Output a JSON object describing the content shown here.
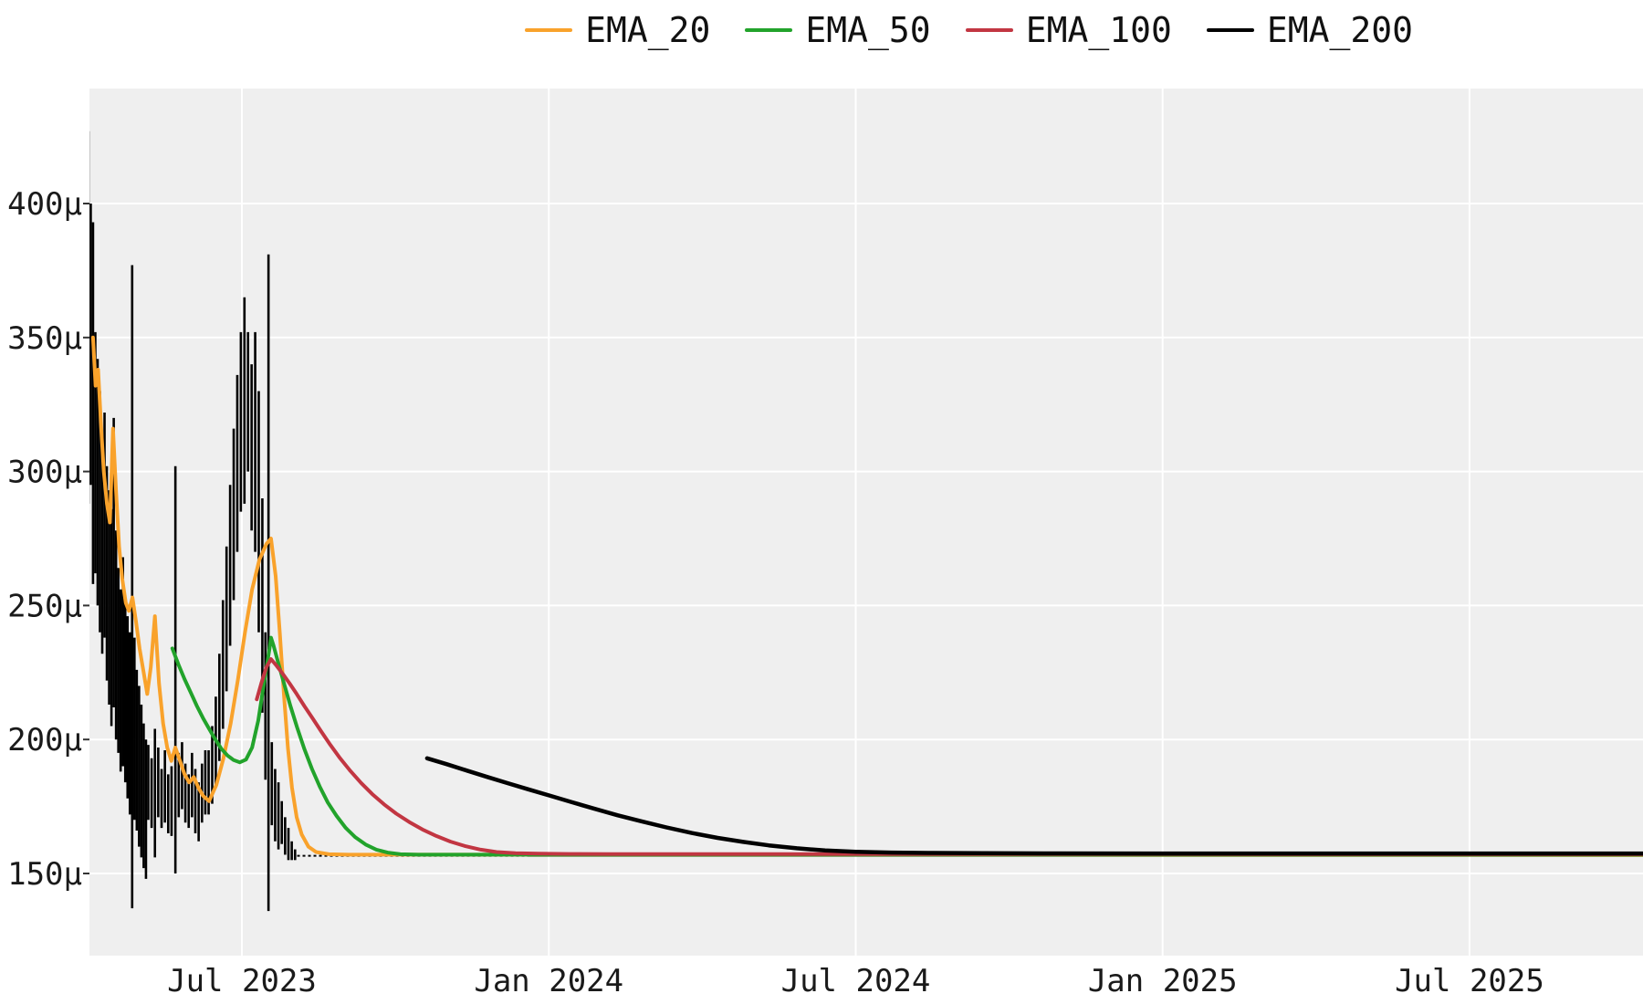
{
  "chart_data": {
    "type": "line",
    "title": "",
    "x_unit": "months since 2023-04-01",
    "y_unit": "µ (micro, price)",
    "x_range_months": [
      0,
      30.4
    ],
    "y_range_mu": [
      119,
      443
    ],
    "grid": true,
    "plot_bg_color": "#efefef",
    "grid_color": "#ffffff",
    "legend_position": "top-right-outside",
    "x_axis": {
      "ticks": [
        {
          "label": "Jul 2023",
          "month": 3
        },
        {
          "label": "Jan 2024",
          "month": 9
        },
        {
          "label": "Jul 2024",
          "month": 15
        },
        {
          "label": "Jan 2025",
          "month": 21
        },
        {
          "label": "Jul 2025",
          "month": 27
        }
      ]
    },
    "y_axis": {
      "ticks": [
        {
          "label": "400µ",
          "value": 400
        },
        {
          "label": "350µ",
          "value": 350
        },
        {
          "label": "300µ",
          "value": 300
        },
        {
          "label": "250µ",
          "value": 250
        },
        {
          "label": "200µ",
          "value": 200
        },
        {
          "label": "150µ",
          "value": 150
        }
      ]
    },
    "legend": {
      "items": [
        {
          "label": "EMA_20",
          "color": "#f9a22b"
        },
        {
          "label": "EMA_50",
          "color": "#22a32b"
        },
        {
          "label": "EMA_100",
          "color": "#c23642"
        },
        {
          "label": "EMA_200",
          "color": "#000000"
        }
      ]
    },
    "series": [
      {
        "name": "EMA_20",
        "color": "#f9a22b",
        "width": 4,
        "points": [
          [
            0.09,
            350
          ],
          [
            0.14,
            332
          ],
          [
            0.19,
            338
          ],
          [
            0.25,
            316
          ],
          [
            0.3,
            300
          ],
          [
            0.36,
            288
          ],
          [
            0.42,
            281
          ],
          [
            0.48,
            316
          ],
          [
            0.54,
            293
          ],
          [
            0.6,
            272
          ],
          [
            0.66,
            260
          ],
          [
            0.73,
            251
          ],
          [
            0.79,
            248
          ],
          [
            0.86,
            253
          ],
          [
            0.93,
            244
          ],
          [
            1.0,
            234
          ],
          [
            1.08,
            225
          ],
          [
            1.15,
            217
          ],
          [
            1.22,
            227
          ],
          [
            1.3,
            246
          ],
          [
            1.38,
            221
          ],
          [
            1.46,
            206
          ],
          [
            1.54,
            197
          ],
          [
            1.62,
            192
          ],
          [
            1.7,
            197
          ],
          [
            1.79,
            192
          ],
          [
            1.88,
            187
          ],
          [
            1.97,
            184
          ],
          [
            2.06,
            186
          ],
          [
            2.15,
            182
          ],
          [
            2.24,
            179
          ],
          [
            2.36,
            177
          ],
          [
            2.5,
            183
          ],
          [
            2.64,
            193
          ],
          [
            2.78,
            206
          ],
          [
            2.92,
            222
          ],
          [
            3.06,
            240
          ],
          [
            3.2,
            256
          ],
          [
            3.34,
            267
          ],
          [
            3.48,
            273
          ],
          [
            3.57,
            275
          ],
          [
            3.66,
            261
          ],
          [
            3.74,
            240
          ],
          [
            3.82,
            217
          ],
          [
            3.9,
            197
          ],
          [
            3.98,
            182
          ],
          [
            4.07,
            171
          ],
          [
            4.17,
            164.5
          ],
          [
            4.3,
            160
          ],
          [
            4.45,
            158
          ],
          [
            4.7,
            157.2
          ],
          [
            5.1,
            157
          ],
          [
            30.4,
            156.9
          ]
        ]
      },
      {
        "name": "EMA_50",
        "color": "#22a32b",
        "width": 4,
        "points": [
          [
            1.64,
            234
          ],
          [
            1.76,
            228
          ],
          [
            1.88,
            222.5
          ],
          [
            2.0,
            217.5
          ],
          [
            2.12,
            212.5
          ],
          [
            2.24,
            208
          ],
          [
            2.36,
            204
          ],
          [
            2.48,
            200
          ],
          [
            2.6,
            196.5
          ],
          [
            2.72,
            194
          ],
          [
            2.84,
            192.3
          ],
          [
            2.96,
            191.5
          ],
          [
            3.08,
            192.5
          ],
          [
            3.2,
            197
          ],
          [
            3.32,
            207
          ],
          [
            3.44,
            222
          ],
          [
            3.54,
            234
          ],
          [
            3.57,
            238
          ],
          [
            3.62,
            235
          ],
          [
            3.72,
            228
          ],
          [
            3.83,
            220.5
          ],
          [
            3.95,
            212.5
          ],
          [
            4.08,
            204.5
          ],
          [
            4.22,
            196.5
          ],
          [
            4.37,
            189
          ],
          [
            4.52,
            182.5
          ],
          [
            4.68,
            176.5
          ],
          [
            4.85,
            171.5
          ],
          [
            5.03,
            167
          ],
          [
            5.22,
            163.5
          ],
          [
            5.42,
            160.8
          ],
          [
            5.63,
            158.9
          ],
          [
            5.85,
            157.8
          ],
          [
            6.1,
            157.2
          ],
          [
            6.45,
            157
          ],
          [
            30.4,
            157
          ]
        ]
      },
      {
        "name": "EMA_100",
        "color": "#c23642",
        "width": 4,
        "points": [
          [
            3.29,
            215
          ],
          [
            3.38,
            221
          ],
          [
            3.48,
            227
          ],
          [
            3.57,
            230
          ],
          [
            3.68,
            227.5
          ],
          [
            3.8,
            224.5
          ],
          [
            3.93,
            221
          ],
          [
            4.07,
            217
          ],
          [
            4.22,
            212.5
          ],
          [
            4.38,
            208
          ],
          [
            4.55,
            203
          ],
          [
            4.73,
            198
          ],
          [
            4.92,
            193
          ],
          [
            5.12,
            188.3
          ],
          [
            5.33,
            183.8
          ],
          [
            5.55,
            179.6
          ],
          [
            5.78,
            175.8
          ],
          [
            6.02,
            172.3
          ],
          [
            6.27,
            169.2
          ],
          [
            6.53,
            166.4
          ],
          [
            6.8,
            164
          ],
          [
            7.08,
            161.9
          ],
          [
            7.37,
            160.2
          ],
          [
            7.67,
            158.9
          ],
          [
            7.98,
            158
          ],
          [
            8.35,
            157.6
          ],
          [
            8.8,
            157.4
          ],
          [
            9.4,
            157.3
          ],
          [
            10.2,
            157.25
          ],
          [
            30.4,
            157.2
          ]
        ]
      },
      {
        "name": "EMA_200",
        "color": "#000000",
        "width": 4.5,
        "points": [
          [
            6.62,
            193
          ],
          [
            7.0,
            190.8
          ],
          [
            7.4,
            188.4
          ],
          [
            7.8,
            186
          ],
          [
            8.2,
            183.7
          ],
          [
            8.6,
            181.4
          ],
          [
            9.03,
            179
          ],
          [
            9.45,
            176.6
          ],
          [
            9.9,
            174.1
          ],
          [
            10.35,
            171.7
          ],
          [
            10.8,
            169.5
          ],
          [
            11.3,
            167.2
          ],
          [
            11.8,
            165.1
          ],
          [
            12.3,
            163.3
          ],
          [
            12.8,
            161.8
          ],
          [
            13.3,
            160.5
          ],
          [
            13.85,
            159.4
          ],
          [
            14.4,
            158.6
          ],
          [
            15.0,
            158.1
          ],
          [
            15.7,
            157.8
          ],
          [
            16.5,
            157.65
          ],
          [
            17.5,
            157.55
          ],
          [
            19.0,
            157.5
          ],
          [
            21.0,
            157.45
          ],
          [
            30.4,
            157.45
          ]
        ]
      }
    ],
    "price_bars": {
      "name": "price-high-low-bars",
      "color": "#000000",
      "width": 2.6,
      "bars": [
        [
          0.0,
          427,
          288
        ],
        [
          0.045,
          400,
          295
        ],
        [
          0.09,
          393,
          258
        ],
        [
          0.135,
          352,
          262
        ],
        [
          0.18,
          342,
          250
        ],
        [
          0.225,
          330,
          240
        ],
        [
          0.27,
          312,
          232
        ],
        [
          0.315,
          322,
          238
        ],
        [
          0.36,
          302,
          222
        ],
        [
          0.405,
          293,
          213
        ],
        [
          0.45,
          286,
          205
        ],
        [
          0.495,
          320,
          212
        ],
        [
          0.54,
          278,
          200
        ],
        [
          0.585,
          264,
          195
        ],
        [
          0.63,
          256,
          188
        ],
        [
          0.675,
          268,
          190
        ],
        [
          0.72,
          252,
          184
        ],
        [
          0.765,
          246,
          178
        ],
        [
          0.81,
          240,
          172
        ],
        [
          0.855,
          377,
          137
        ],
        [
          0.9,
          238,
          170
        ],
        [
          0.945,
          226,
          166
        ],
        [
          0.99,
          220,
          160
        ],
        [
          1.035,
          213,
          156
        ],
        [
          1.08,
          206,
          152
        ],
        [
          1.125,
          200,
          148
        ],
        [
          1.17,
          198,
          170
        ],
        [
          1.235,
          193,
          167
        ],
        [
          1.3,
          204,
          156
        ],
        [
          1.365,
          197,
          171
        ],
        [
          1.43,
          189,
          167
        ],
        [
          1.495,
          196,
          169
        ],
        [
          1.56,
          187,
          165
        ],
        [
          1.625,
          190,
          164
        ],
        [
          1.7,
          302,
          150
        ],
        [
          1.765,
          195,
          171
        ],
        [
          1.83,
          199,
          174
        ],
        [
          1.895,
          191,
          169
        ],
        [
          1.96,
          187,
          167
        ],
        [
          2.025,
          195,
          171
        ],
        [
          2.09,
          189,
          165
        ],
        [
          2.155,
          184,
          162
        ],
        [
          2.22,
          191,
          169
        ],
        [
          2.285,
          196,
          172
        ],
        [
          2.35,
          196,
          172
        ],
        [
          2.42,
          205,
          176
        ],
        [
          2.49,
          216,
          182
        ],
        [
          2.56,
          232,
          192
        ],
        [
          2.63,
          252,
          204
        ],
        [
          2.7,
          272,
          218
        ],
        [
          2.77,
          295,
          235
        ],
        [
          2.84,
          316,
          252
        ],
        [
          2.91,
          336,
          270
        ],
        [
          2.98,
          352,
          285
        ],
        [
          3.05,
          365,
          288
        ],
        [
          3.12,
          352,
          300
        ],
        [
          3.19,
          340,
          278
        ],
        [
          3.26,
          352,
          270
        ],
        [
          3.33,
          330,
          240
        ],
        [
          3.4,
          290,
          210
        ],
        [
          3.46,
          240,
          185
        ],
        [
          3.52,
          381,
          136
        ],
        [
          3.585,
          199,
          168
        ],
        [
          3.65,
          189,
          162
        ],
        [
          3.715,
          184,
          159
        ],
        [
          3.78,
          177,
          161
        ],
        [
          3.845,
          171,
          157
        ],
        [
          3.91,
          167,
          155
        ],
        [
          3.975,
          162,
          155
        ],
        [
          4.04,
          159,
          155
        ]
      ]
    },
    "price_tail": {
      "name": "price-flat-tail",
      "color": "#000000",
      "value_mu": 156.6,
      "dashed_from_month": 4.08,
      "dashed_to_month": 8.6,
      "solid_to_month": 30.4
    }
  }
}
